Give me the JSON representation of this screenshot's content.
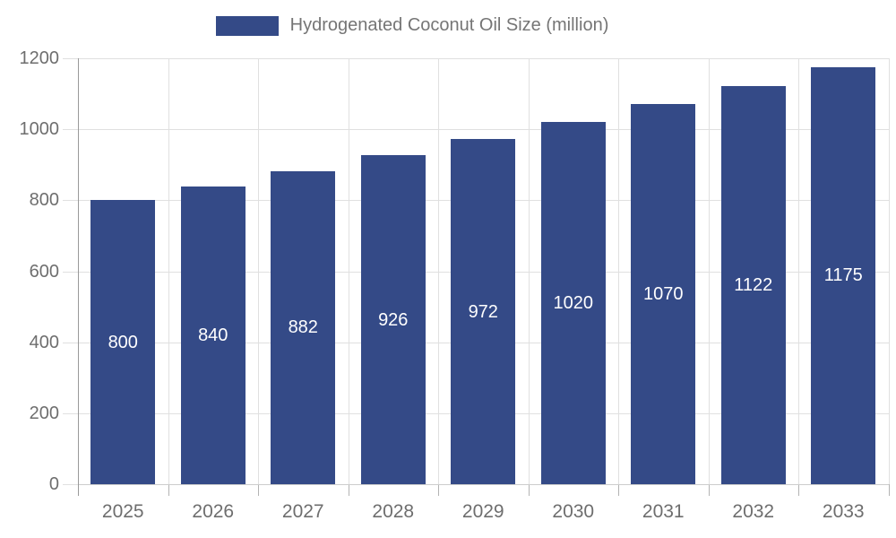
{
  "legend": {
    "items": [
      {
        "label": "Hydrogenated Coconut Oil Size (million)",
        "color": "#344a87"
      }
    ]
  },
  "chart_data": {
    "type": "bar",
    "title": "",
    "categories": [
      "2025",
      "2026",
      "2027",
      "2028",
      "2029",
      "2030",
      "2031",
      "2032",
      "2033"
    ],
    "series": [
      {
        "name": "Hydrogenated Coconut Oil Size (million)",
        "values": [
          800,
          840,
          882,
          926,
          972,
          1020,
          1070,
          1122,
          1175
        ],
        "color": "#344a87"
      }
    ],
    "xlabel": "",
    "ylabel": "",
    "ylim": [
      0,
      1200
    ],
    "yticks": [
      0,
      200,
      400,
      600,
      800,
      1000,
      1200
    ],
    "grid": true,
    "legend_position": "top-center",
    "value_labels": {
      "position": "inside-center",
      "color": "#ffffff"
    }
  },
  "style": {
    "bar_color": "#344a87",
    "bar_label_color": "#ffffff",
    "axis_text_color": "#6e6e6e",
    "legend_text_color": "#757575",
    "grid_color": "#e0e0e0",
    "axis_line_color": "#999999",
    "x_axis_line_color": "#cccccc",
    "tick_color": "#b3b3b3",
    "background": "#ffffff"
  }
}
